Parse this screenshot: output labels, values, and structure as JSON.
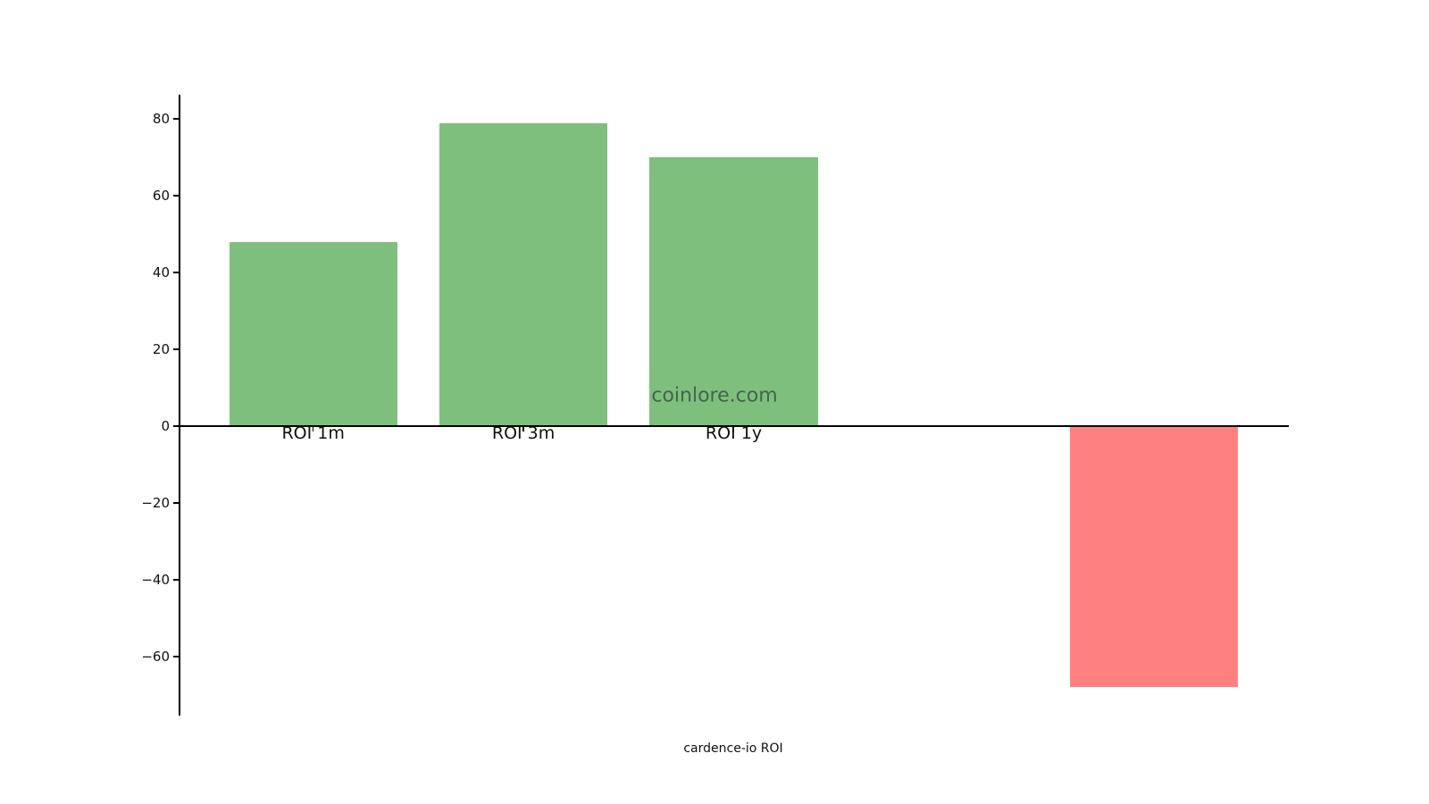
{
  "chart_data": {
    "type": "bar",
    "xlabel": "cardence-io ROI",
    "ylabel": "",
    "watermark": "coinlore.com",
    "categories": [
      "ROI 1m",
      "ROI 3m",
      "ROI 1y",
      ""
    ],
    "values": [
      48,
      79,
      70,
      -68
    ],
    "slots": [
      0,
      1,
      2,
      4
    ],
    "bar_colors": [
      "#7ebf7e",
      "#7ebf7e",
      "#7ebf7e",
      "#ff8080"
    ],
    "positive_color": "#7ebf7e",
    "negative_color": "#ff8080",
    "bar_width": 0.8,
    "y_tick_values": [
      80,
      60,
      40,
      20,
      0,
      -20,
      -40,
      -60
    ],
    "y_tick_labels": [
      "80",
      "60",
      "40",
      "20",
      "0",
      "−20",
      "−40",
      "−60"
    ],
    "ylim": [
      -75.35,
      86.35
    ],
    "xlim": [
      -0.64,
      4.64
    ],
    "grid": false,
    "legend": null
  }
}
